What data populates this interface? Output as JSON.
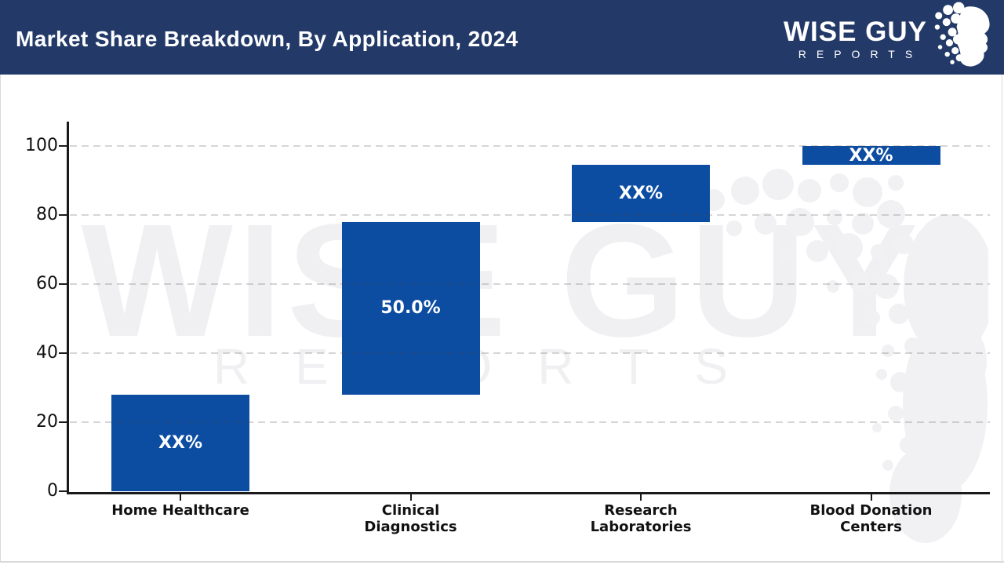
{
  "header": {
    "title": "Market Share Breakdown, By Application, 2024",
    "logo": {
      "line1": "WISE GUY",
      "line2": "REPORTS"
    }
  },
  "watermark": {
    "line1": "WISE GUY",
    "line2": "REPORTS"
  },
  "colors": {
    "header_bg": "#233a69",
    "bar": "#0c4da2",
    "bar_label": "#ffffff",
    "axis": "#1a1a1a",
    "gridline": "#dcdcdc",
    "watermark": "#f0f0f3"
  },
  "chart_data": {
    "type": "bar",
    "subtype": "waterfall",
    "title": "Market Share Breakdown, By Application, 2024",
    "categories": [
      "Home Healthcare",
      "Clinical\nDiagnostics",
      "Research\nLaboratories",
      "Blood Donation\nCenters"
    ],
    "segments": [
      {
        "category": "Home Healthcare",
        "from": 0,
        "to": 28,
        "label": "XX%"
      },
      {
        "category": "Clinical Diagnostics",
        "from": 28,
        "to": 78,
        "label": "50.0%"
      },
      {
        "category": "Research Laboratories",
        "from": 78,
        "to": 94.5,
        "label": "XX%"
      },
      {
        "category": "Blood Donation Centers",
        "from": 94.5,
        "to": 100,
        "label": "XX%"
      }
    ],
    "yticks": [
      0,
      20,
      40,
      60,
      80,
      100
    ],
    "ylim": [
      0,
      107
    ],
    "xlabel": "",
    "ylabel": "",
    "grid": "horizontal-dashed",
    "legend": "none",
    "bar_color": "#0c4da2"
  }
}
